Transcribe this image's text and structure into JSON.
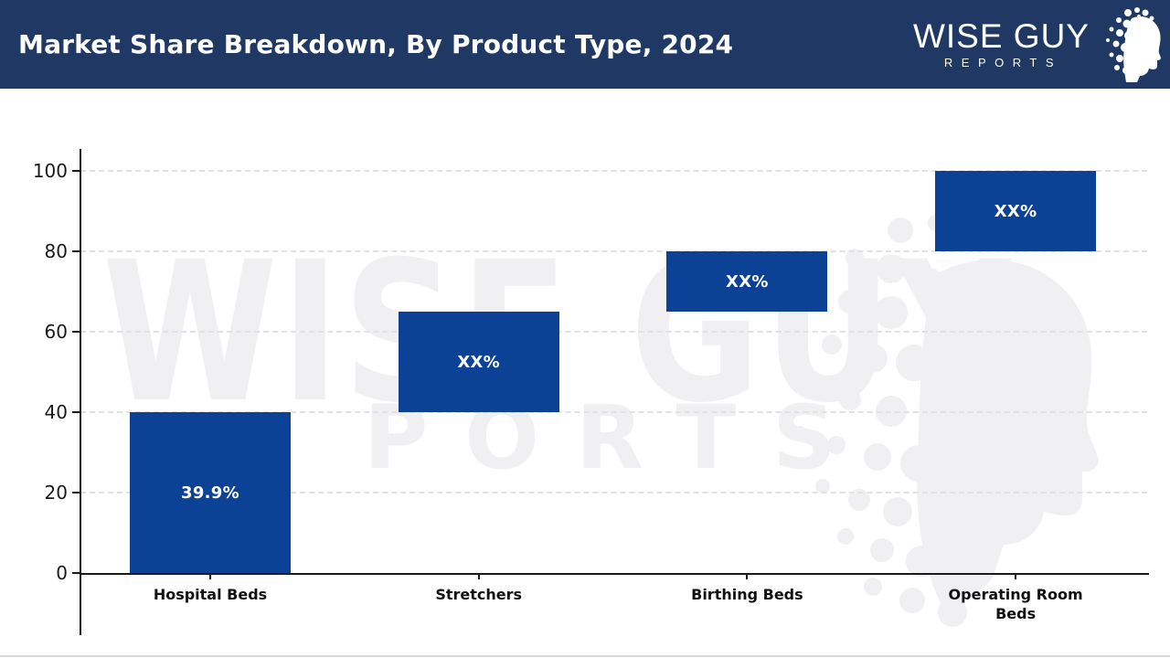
{
  "header": {
    "title": "Market Share Breakdown, By Product Type, 2024",
    "logo": {
      "line1": "WISE GUY",
      "line2": "REPORTS"
    }
  },
  "watermark": {
    "line1": "WISE GUY",
    "line2": "PORTS"
  },
  "chart_data": {
    "type": "bar",
    "subtype": "waterfall",
    "title": "Market Share Breakdown, By Product Type, 2024",
    "categories": [
      "Hospital Beds",
      "Stretchers",
      "Birthing Beds",
      "Operating Room Beds"
    ],
    "bars": [
      {
        "category": "Hospital Beds",
        "start": 0,
        "end": 39.9,
        "label": "39.9%"
      },
      {
        "category": "Stretchers",
        "start": 40,
        "end": 65,
        "label": "XX%"
      },
      {
        "category": "Birthing Beds",
        "start": 65,
        "end": 80,
        "label": "XX%"
      },
      {
        "category": "Operating Room Beds",
        "start": 80,
        "end": 100,
        "label": "XX%"
      }
    ],
    "ylim": [
      0,
      100
    ],
    "yticks": [
      0,
      20,
      40,
      60,
      80,
      100
    ],
    "xlabel": "",
    "ylabel": "",
    "grid": "horizontal-dashed",
    "legend": "none",
    "bar_color": "#0b4296",
    "bar_label_color": "#ffffff"
  },
  "colors": {
    "header_bg": "#1f3864",
    "bar_fill": "#0b4296",
    "bar_label": "#ffffff",
    "axis": "#1a1a1a",
    "grid": "#e2e2e2",
    "watermark": "#f0f0f2",
    "title": "#ffffff",
    "bottom_rule": "#d9d9d9"
  }
}
